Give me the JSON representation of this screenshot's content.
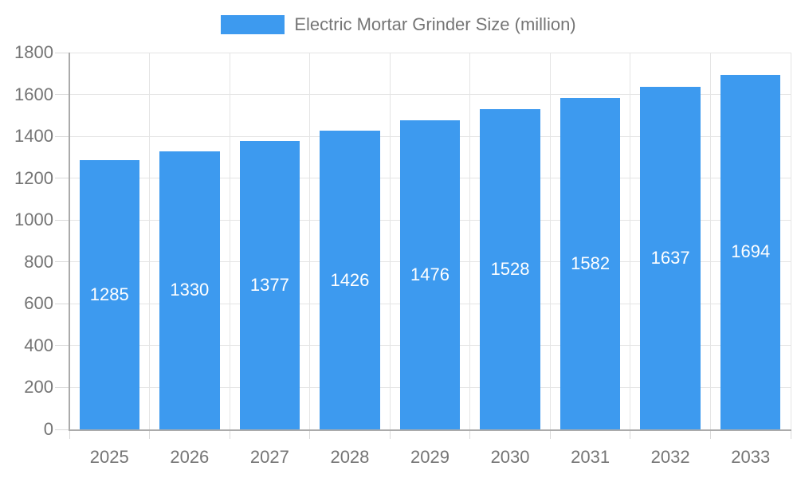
{
  "chart_data": {
    "type": "bar",
    "title": "Electric Mortar Grinder Size (million)",
    "legend_label": "Electric Mortar Grinder Size (million)",
    "legend_position": "top",
    "categories": [
      "2025",
      "2026",
      "2027",
      "2028",
      "2029",
      "2030",
      "2031",
      "2032",
      "2033"
    ],
    "series": [
      {
        "name": "Electric Mortar Grinder Size (million)",
        "values": [
          1285,
          1330,
          1377,
          1426,
          1476,
          1528,
          1582,
          1637,
          1694
        ]
      }
    ],
    "xlabel": "",
    "ylabel": "",
    "ylim": [
      0,
      1800
    ],
    "ytick_step": 200,
    "grid": true,
    "value_labels": "inside-middle",
    "colors": {
      "bar": "#3D9AEF",
      "bar_value_text": "#ffffff",
      "axis_line": "#ababab",
      "gridline": "#e4e4e4",
      "tick_mark": "#d9d9d9",
      "tick_text": "#757575",
      "legend_text": "#757575",
      "background": "#ffffff"
    }
  }
}
